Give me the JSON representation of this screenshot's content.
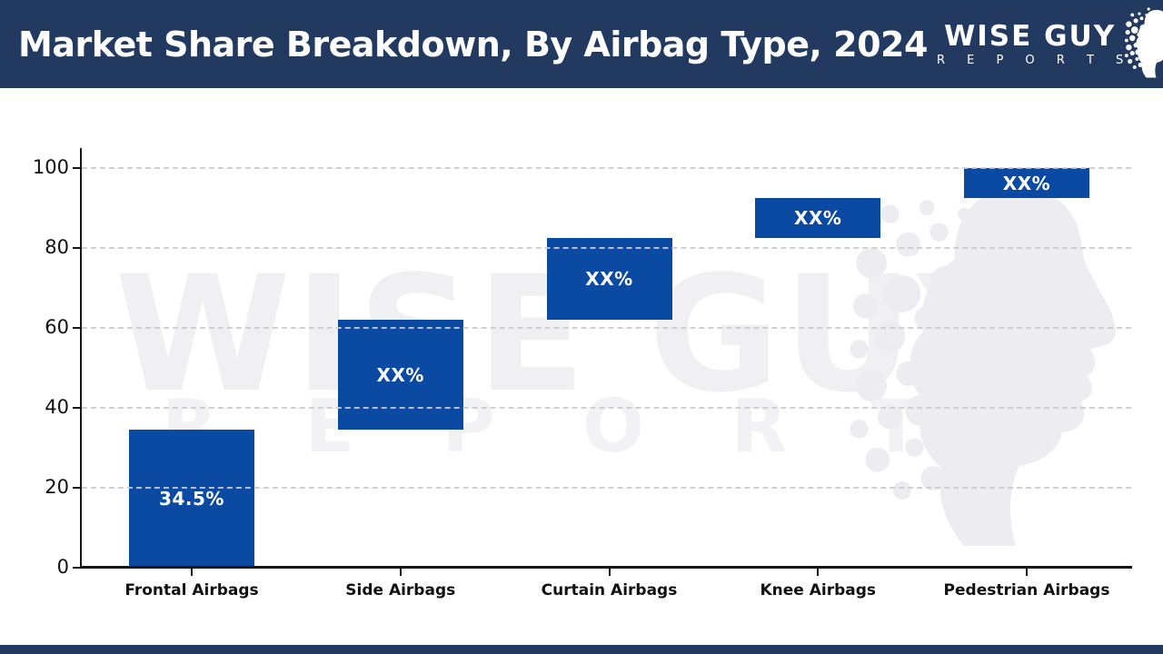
{
  "header": {
    "title": "Market Share Breakdown, By Airbag Type, 2024",
    "logo": {
      "name_line": "WISE GUY",
      "reports_line": "R E P O R T S"
    }
  },
  "watermark": {
    "name_line": "WISE GUY",
    "reports_line": "REPORTS"
  },
  "colors": {
    "header_bg": "#233a60",
    "bar_blue": "#0b4aa2",
    "bar_label_white": "#ffffff",
    "grid_gray": "#cbcbcb",
    "watermark_gray": "#f0f0f3",
    "axis_black": "#161616"
  },
  "chart_data": {
    "type": "bar",
    "subtype": "waterfall",
    "title": "Market Share Breakdown, By Airbag Type, 2024",
    "categories": [
      "Frontal Airbags",
      "Side Airbags",
      "Curtain Airbags",
      "Knee Airbags",
      "Pedestrian Airbags"
    ],
    "segments": [
      {
        "category": "Frontal Airbags",
        "start": 0,
        "end": 34.5,
        "label": "34.5%"
      },
      {
        "category": "Side Airbags",
        "start": 34.5,
        "end": 62,
        "label": "XX%"
      },
      {
        "category": "Curtain Airbags",
        "start": 62,
        "end": 82.5,
        "label": "XX%"
      },
      {
        "category": "Knee Airbags",
        "start": 82.5,
        "end": 92.5,
        "label": "XX%"
      },
      {
        "category": "Pedestrian Airbags",
        "start": 92.5,
        "end": 100,
        "label": "XX%"
      }
    ],
    "yticks": [
      0,
      20,
      40,
      60,
      80,
      100
    ],
    "ylim": [
      0,
      105
    ],
    "xlabel": "",
    "ylabel": "",
    "grid": true,
    "grid_style": "dashed",
    "legend": false
  }
}
